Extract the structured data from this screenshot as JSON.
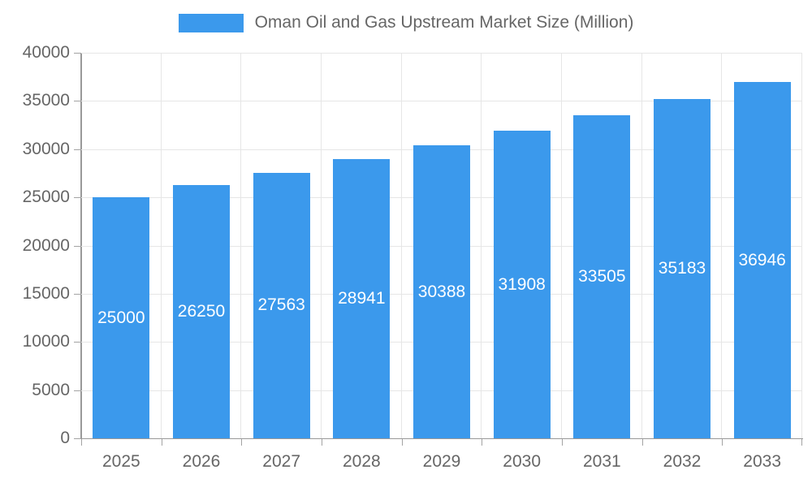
{
  "legend": {
    "position": "top"
  },
  "chart_data": {
    "type": "bar",
    "title": "Oman Oil and Gas Upstream Market Size (Million)",
    "xlabel": "",
    "ylabel": "",
    "categories": [
      "2025",
      "2026",
      "2027",
      "2028",
      "2029",
      "2030",
      "2031",
      "2032",
      "2033"
    ],
    "values": [
      25000,
      26250,
      27563,
      28941,
      30388,
      31908,
      33505,
      35183,
      36946
    ],
    "ylim": [
      0,
      40000
    ],
    "ytick_step": 5000,
    "grid": true,
    "legend_position": "top",
    "colors": {
      "bar": "#3b99ec",
      "value_label": "#ffffff",
      "grid": "#e6e6e6",
      "axis": "#999999",
      "tick_text": "#666666",
      "legend_text": "#666666",
      "background": "#ffffff"
    }
  }
}
